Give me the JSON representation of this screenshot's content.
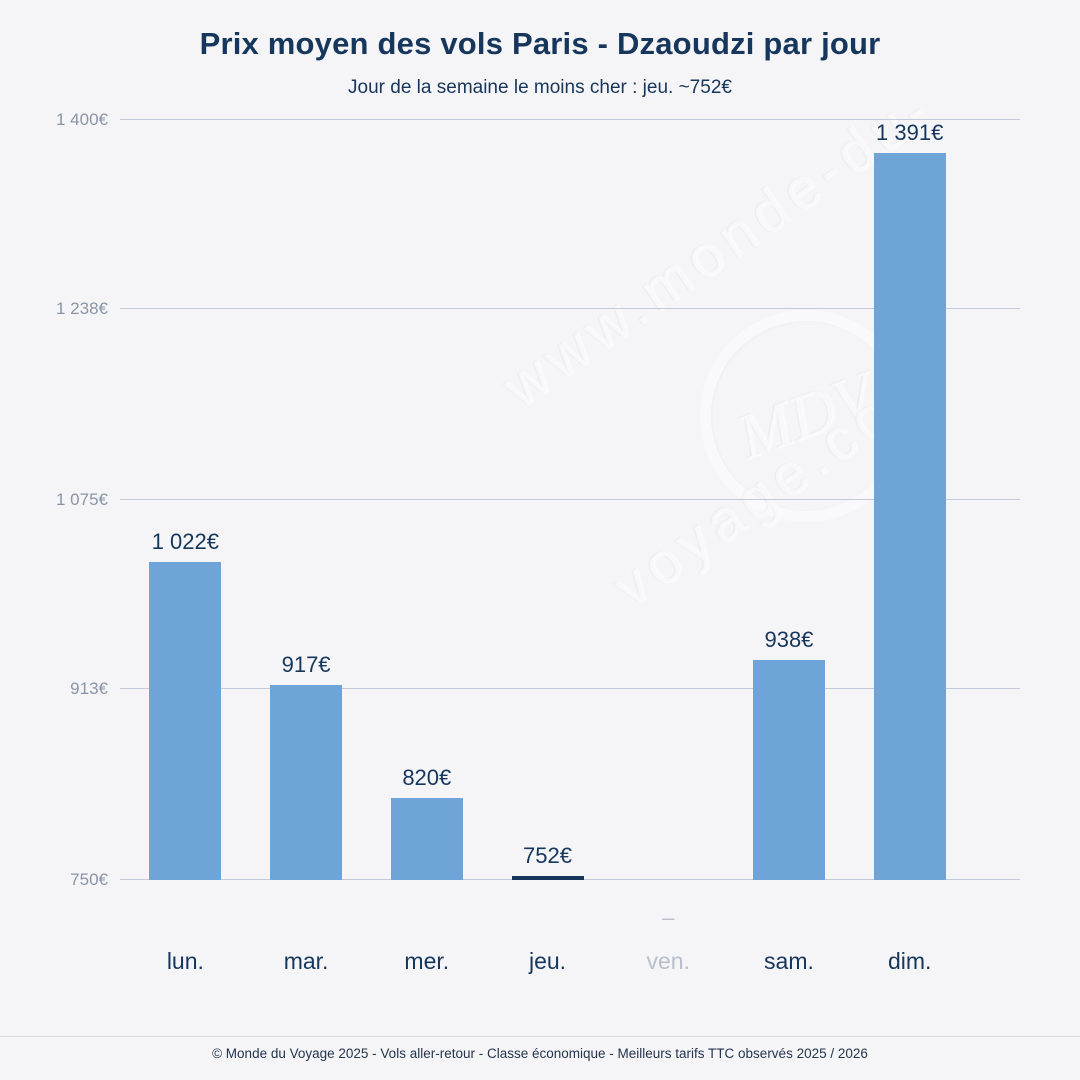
{
  "page": {
    "title": "Prix moyen des vols Paris - Dzaoudzi par jour",
    "subtitle": "Jour de la semaine le moins cher : jeu. ~752€",
    "footer": "© Monde du Voyage 2025 - Vols aller-retour - Classe économique - Meilleurs tarifs TTC observés 2025 / 2026",
    "watermark": {
      "text_line1": "www.monde-du-",
      "text_line2": "voyage.com",
      "badge": "MDV"
    }
  },
  "chart_data": {
    "type": "bar",
    "title": "Prix moyen des vols Paris - Dzaoudzi par jour",
    "subtitle": "Jour de la semaine le moins cher : jeu. ~752€",
    "categories": [
      "lun.",
      "mar.",
      "mer.",
      "jeu.",
      "ven.",
      "sam.",
      "dim."
    ],
    "values": [
      1022,
      917,
      820,
      752,
      null,
      938,
      1391
    ],
    "value_labels": [
      "1 022€",
      "917€",
      "820€",
      "752€",
      "–",
      "938€",
      "1 391€"
    ],
    "cheapest_day_index": 3,
    "missing_data_index": 4,
    "xlabel": "",
    "ylabel": "",
    "ylim": [
      750,
      1400
    ],
    "yticks": [
      750,
      913,
      1075,
      1238,
      1400
    ],
    "ytick_labels": [
      "750€",
      "913€",
      "1 075€",
      "1 238€",
      "1 400€"
    ],
    "grid": true,
    "legend": false,
    "colors": {
      "bar": "#6fa4d9",
      "bar_highlight": "#16365c",
      "title": "#16365c",
      "gridline": "#c4cad9",
      "axis_tick": "#8b94a6",
      "day_label": "#16365c",
      "day_label_muted": "#b9c0cc",
      "background": "#f5f5f7"
    }
  }
}
